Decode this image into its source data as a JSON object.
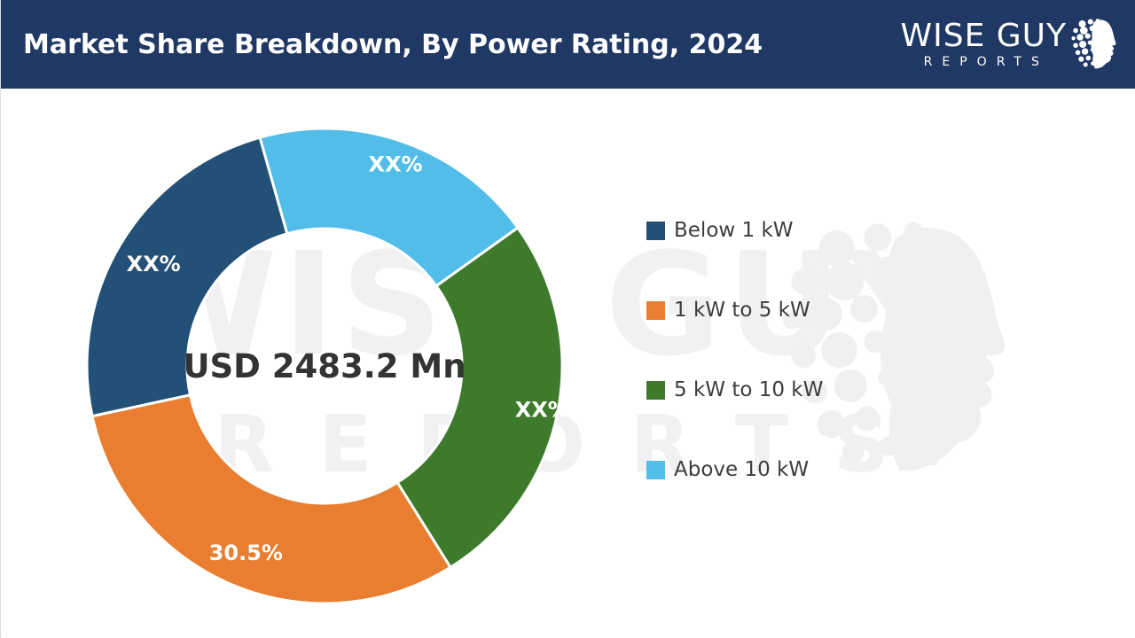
{
  "header": {
    "title": "Market Share Breakdown, By Power Rating, 2024",
    "logo": {
      "line1": "WISE GUY",
      "line2": "REPORTS"
    },
    "background": "#1f3864",
    "text_color": "#ffffff"
  },
  "watermark": {
    "line1": "WISE GUY",
    "line2": "R E P O R T S"
  },
  "chart_data": {
    "type": "pie",
    "subtype": "donut",
    "title": "Market Share Breakdown, By Power Rating, 2024",
    "center_text": "USD 2483.2 Mn",
    "categories": [
      "Below 1 kW",
      "1 kW to 5 kW",
      "5 kW to 10 kW",
      "Above 10 kW"
    ],
    "values_pct": [
      24,
      30.5,
      26,
      19.5
    ],
    "displayed_labels": [
      "XX%",
      "30.5%",
      "XX%",
      "XX%"
    ],
    "colors": [
      "#235077",
      "#e97e30",
      "#3e7a2c",
      "#52bde8"
    ],
    "start_angle_deg": 105.8,
    "direction": "counterclockwise",
    "legend_position": "right",
    "notes_visible_values": "only the 1 kW to 5 kW slice shows a numeric value (30.5%); other slices are masked as XX%"
  },
  "legend": {
    "items": [
      {
        "label": "Below 1 kW",
        "color": "#235077"
      },
      {
        "label": "1 kW to 5 kW",
        "color": "#e97e30"
      },
      {
        "label": "5 kW to 10 kW",
        "color": "#3e7a2c"
      },
      {
        "label": "Above 10 kW",
        "color": "#52bde8"
      }
    ]
  },
  "colors": {
    "header_navy": "#1f3864",
    "slice_navy": "#235077",
    "slice_orange": "#e97e30",
    "slice_green": "#3e7a2c",
    "slice_light_blue": "#52bde8",
    "center_text": "#333333",
    "legend_text": "#3d3d3d",
    "watermark_gray": "#f1f1f3",
    "page_border": "#d6d6d6"
  }
}
